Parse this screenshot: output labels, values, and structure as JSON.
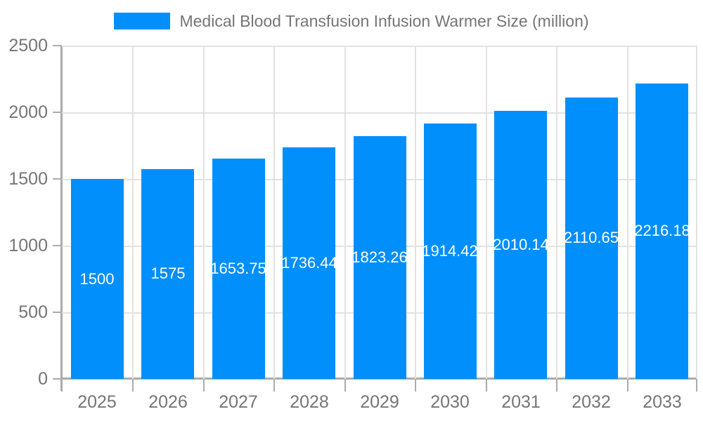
{
  "legend": {
    "label": "Medical Blood Transfusion Infusion Warmer Size (million)",
    "swatch_color": "#008FFB"
  },
  "chart_data": {
    "type": "bar",
    "title": "Medical Blood Transfusion Infusion Warmer Size (million)",
    "categories": [
      "2025",
      "2026",
      "2027",
      "2028",
      "2029",
      "2030",
      "2031",
      "2032",
      "2033"
    ],
    "values": [
      1500,
      1575,
      1653.75,
      1736.44,
      1823.26,
      1914.42,
      2010.14,
      2110.65,
      2216.18
    ],
    "value_labels": [
      "1500",
      "1575",
      "1653.75",
      "1736.44",
      "1823.26",
      "1914.42",
      "2010.14",
      "2110.65",
      "2216.18"
    ],
    "xlabel": "",
    "ylabel": "",
    "ylim": [
      0,
      2500
    ],
    "yticks": [
      0,
      500,
      1000,
      1500,
      2000,
      2500
    ],
    "grid": true,
    "legend_position": "top",
    "bar_color": "#008FFB",
    "value_label_color": "#ffffff",
    "axis_text_color": "#757575",
    "grid_color": "#e2e2e2",
    "axis_line_color": "#ababab",
    "background_color": "#ffffff"
  }
}
